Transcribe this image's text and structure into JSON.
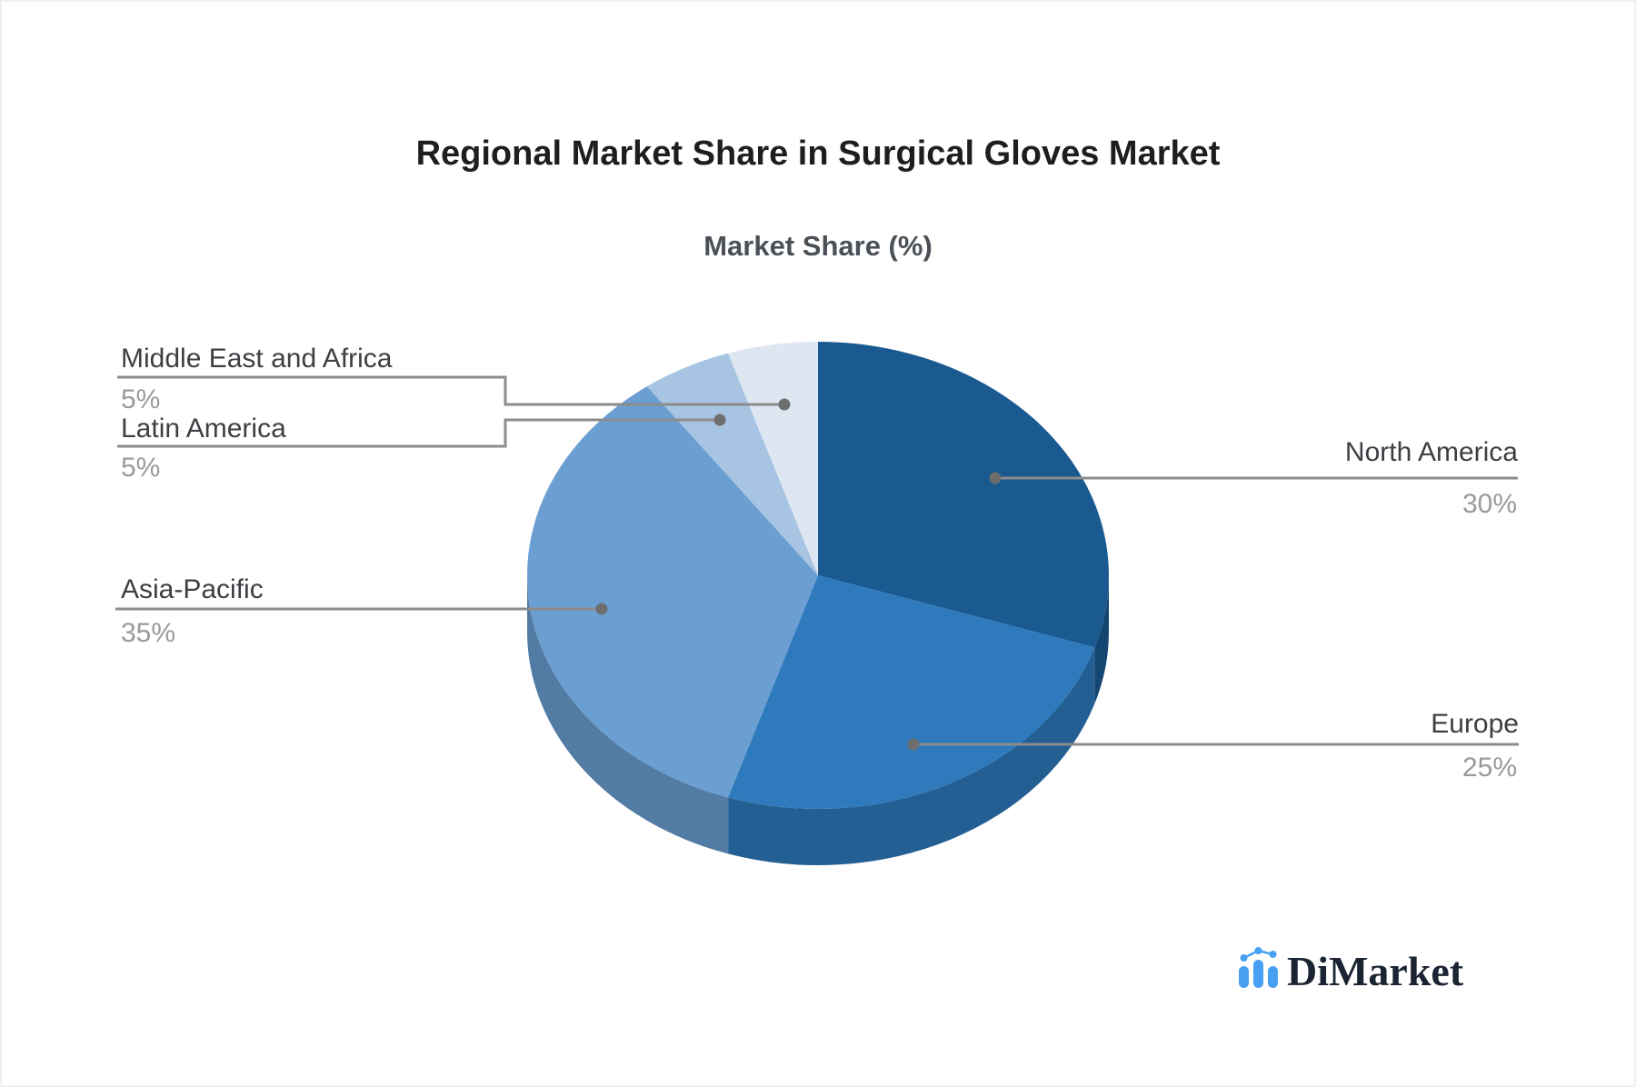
{
  "page": {
    "title": "Regional Market Share in Surgical Gloves Market",
    "subtitle": "Market Share (%)"
  },
  "chart_data": {
    "type": "pie",
    "title": "Regional Market Share in Surgical Gloves Market",
    "subtitle": "Market Share (%)",
    "unit": "%",
    "style": "3d",
    "direction": "clockwise",
    "start_angle_deg": 0,
    "legend": "off",
    "slices": [
      {
        "label": "North America",
        "value": 30,
        "pct_label": "30%",
        "color": "#1b5991",
        "label_side": "right"
      },
      {
        "label": "Europe",
        "value": 25,
        "pct_label": "25%",
        "color": "#2e7abc",
        "label_side": "right"
      },
      {
        "label": "Asia-Pacific",
        "value": 35,
        "pct_label": "35%",
        "color": "#6b9fd2",
        "label_side": "left"
      },
      {
        "label": "Latin America",
        "value": 5,
        "pct_label": "5%",
        "color": "#a7c4e2",
        "label_side": "left"
      },
      {
        "label": "Middle East and Africa",
        "value": 5,
        "pct_label": "5%",
        "color": "#dee6f1",
        "label_side": "left"
      }
    ]
  },
  "brand": {
    "name": "DiMarket",
    "icon": "bar-chart-icon",
    "icon_color": "#47a0f2",
    "text_color": "#1b2433"
  },
  "colors": {
    "leader_line": "#8c8c8c",
    "marker_dot": "#6e6e6e",
    "label_text": "#3c3f43",
    "pct_text": "#9a9a9a",
    "title_text": "#1d1e20",
    "subtitle_text": "#4b5157",
    "background": "#ffffff"
  }
}
